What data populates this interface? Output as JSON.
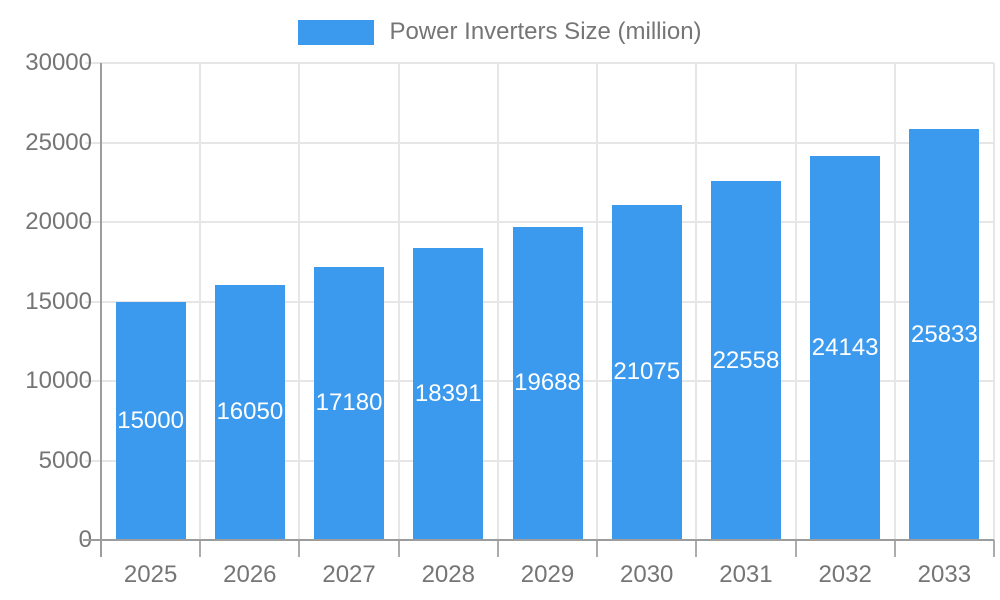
{
  "legend": {
    "label": "Power Inverters Size (million)"
  },
  "colors": {
    "bar": "#3B9AEE",
    "grid": "#E6E6E6",
    "axis": "#9C9C9C",
    "tick": "#ACACAC",
    "axis_text": "#757575",
    "value_text": "#FFFFFF"
  },
  "chart_data": {
    "type": "bar",
    "title": "Power Inverters Size (million)",
    "categories": [
      "2025",
      "2026",
      "2027",
      "2028",
      "2029",
      "2030",
      "2031",
      "2032",
      "2033"
    ],
    "values": [
      15000,
      16050,
      17180,
      18391,
      19688,
      21075,
      22558,
      24143,
      25833
    ],
    "series_name": "Power Inverters Size (million)",
    "xlabel": "",
    "ylabel": "",
    "ylim": [
      0,
      30000
    ],
    "yticks": [
      0,
      5000,
      10000,
      15000,
      20000,
      25000,
      30000
    ],
    "grid": true,
    "legend_position": "top",
    "value_label_position": "inside-center"
  }
}
